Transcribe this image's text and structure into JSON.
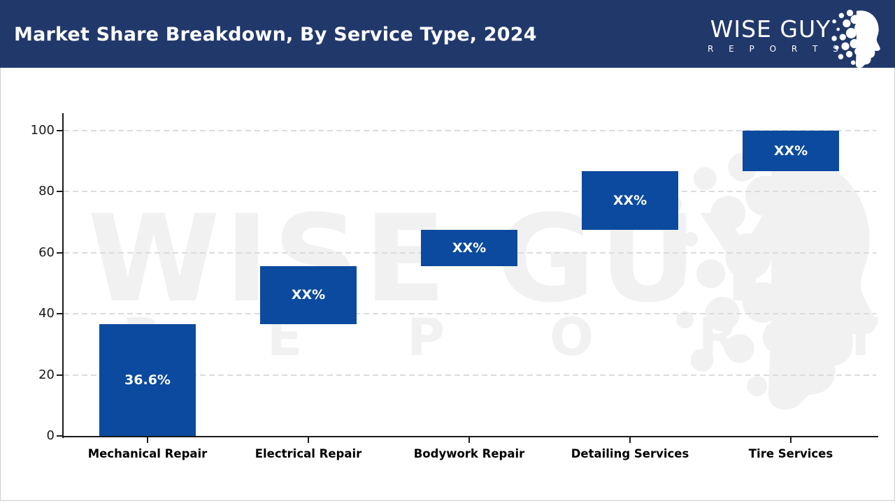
{
  "header": {
    "title": "Market Share Breakdown, By Service Type, 2024",
    "bg_color": "#21386B",
    "logo": {
      "line1": "WISE GUY",
      "line2": "REPORTS"
    }
  },
  "watermark": {
    "line1": "WISE GUY",
    "line2": "REPORTS"
  },
  "chart_data": {
    "type": "bar",
    "subtype": "waterfall",
    "title": "Market Share Breakdown, By Service Type, 2024",
    "xlabel": "",
    "ylabel": "",
    "categories": [
      "Mechanical Repair",
      "Electrical Repair",
      "Bodywork Repair",
      "Detailing Services",
      "Tire Services"
    ],
    "segments": [
      {
        "category": "Mechanical Repair",
        "start": 0,
        "end": 36.6,
        "label": "36.6%"
      },
      {
        "category": "Electrical Repair",
        "start": 36.6,
        "end": 55.7,
        "label": "XX%"
      },
      {
        "category": "Bodywork Repair",
        "start": 55.7,
        "end": 67.5,
        "label": "XX%"
      },
      {
        "category": "Detailing Services",
        "start": 67.5,
        "end": 86.7,
        "label": "XX%"
      },
      {
        "category": "Tire Services",
        "start": 86.7,
        "end": 100,
        "label": "XX%"
      }
    ],
    "yticks": [
      0,
      20,
      40,
      60,
      80,
      100
    ],
    "ylim": [
      0,
      105.5
    ],
    "bar_color": "#0B4A9E",
    "grid": "horizontal dashed",
    "legend": "none"
  }
}
